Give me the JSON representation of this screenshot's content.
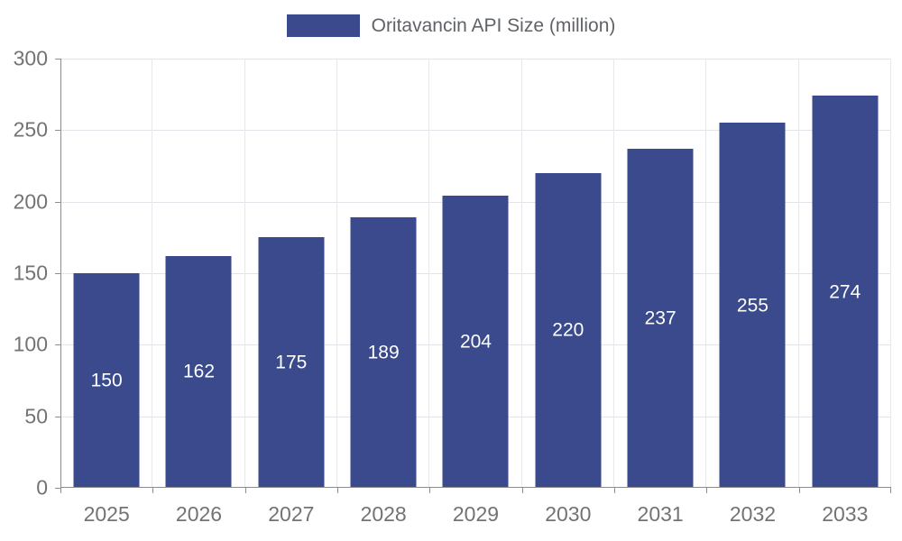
{
  "legend": {
    "label": "Oritavancin API Size (million)"
  },
  "chart_data": {
    "type": "bar",
    "title": "",
    "xlabel": "",
    "ylabel": "",
    "categories": [
      "2025",
      "2026",
      "2027",
      "2028",
      "2029",
      "2030",
      "2031",
      "2032",
      "2033"
    ],
    "series": [
      {
        "name": "Oritavancin API Size (million)",
        "values": [
          150,
          162,
          175,
          189,
          204,
          220,
          237,
          255,
          274
        ]
      }
    ],
    "value_labels_shown": true,
    "ylim": [
      0,
      300
    ],
    "ytick_interval": 50,
    "grid": true,
    "legend_position": "top-center",
    "colors": {
      "bar": "#3A4A8C",
      "value_label": "#ffffff",
      "axis_line": "#8c8c8c",
      "tick_label": "#737373",
      "legend_text": "#5f6368",
      "gridline": "#e2e4e9",
      "background": "#ffffff"
    }
  }
}
